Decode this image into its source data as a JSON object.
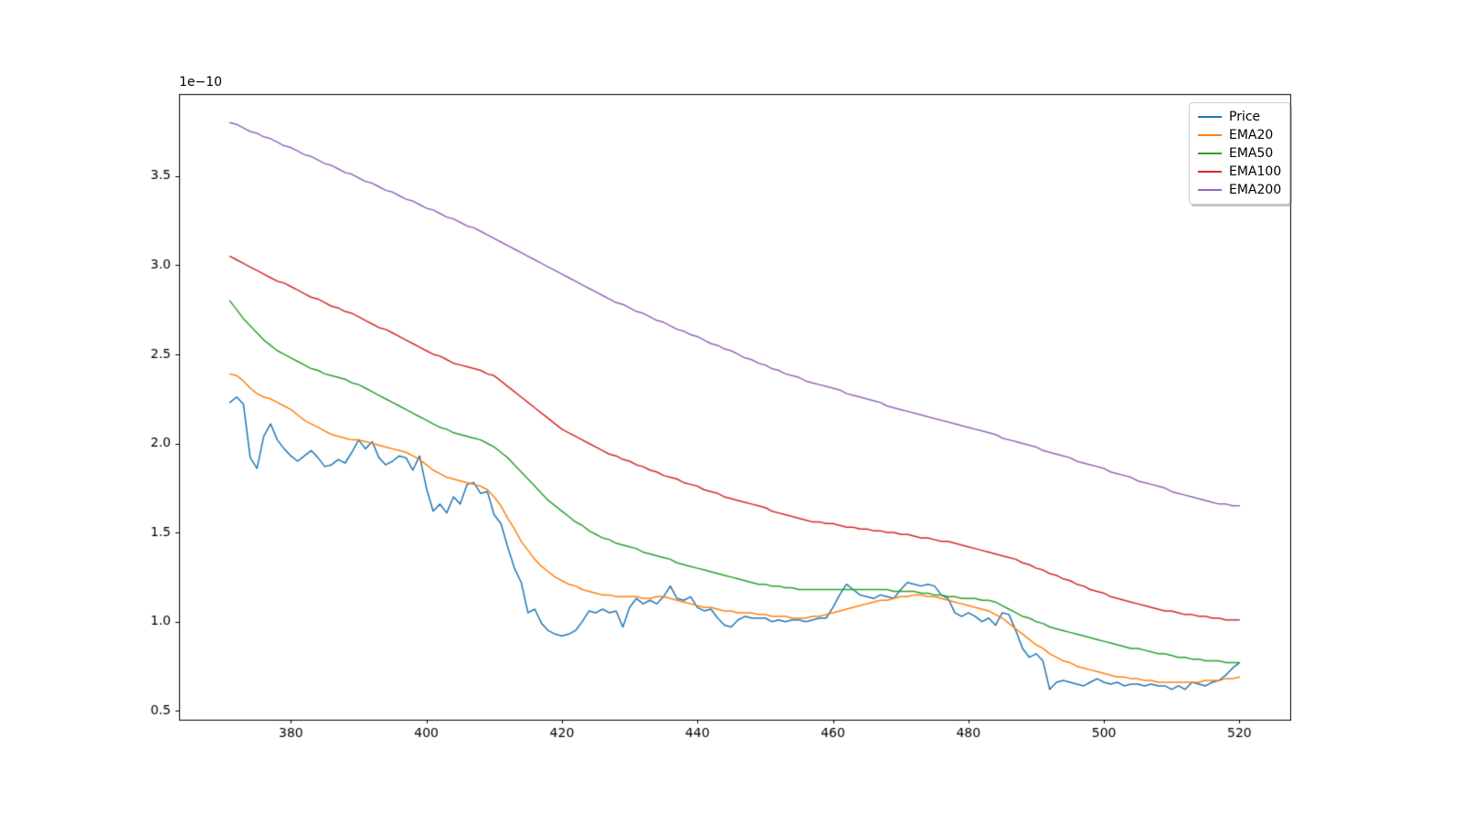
{
  "chart_data": {
    "type": "line",
    "title": "",
    "y_offset_label": "1e−10",
    "xlim": [
      363.5,
      527.5
    ],
    "ylim": [
      0.45,
      3.96
    ],
    "grid": false,
    "legend_position": "upper right",
    "x_ticks": [
      380,
      400,
      420,
      440,
      460,
      480,
      500,
      520
    ],
    "x_tick_labels": [
      "380",
      "400",
      "420",
      "440",
      "460",
      "480",
      "500",
      "520"
    ],
    "y_ticks": [
      0.5,
      1.0,
      1.5,
      2.0,
      2.5,
      3.0,
      3.5
    ],
    "y_tick_labels": [
      "0.5",
      "1.0",
      "1.5",
      "2.0",
      "2.5",
      "3.0",
      "3.5"
    ],
    "x": [
      371,
      372,
      373,
      374,
      375,
      376,
      377,
      378,
      379,
      380,
      381,
      382,
      383,
      384,
      385,
      386,
      387,
      388,
      389,
      390,
      391,
      392,
      393,
      394,
      395,
      396,
      397,
      398,
      399,
      400,
      401,
      402,
      403,
      404,
      405,
      406,
      407,
      408,
      409,
      410,
      411,
      412,
      413,
      414,
      415,
      416,
      417,
      418,
      419,
      420,
      421,
      422,
      423,
      424,
      425,
      426,
      427,
      428,
      429,
      430,
      431,
      432,
      433,
      434,
      435,
      436,
      437,
      438,
      439,
      440,
      441,
      442,
      443,
      444,
      445,
      446,
      447,
      448,
      449,
      450,
      451,
      452,
      453,
      454,
      455,
      456,
      457,
      458,
      459,
      460,
      461,
      462,
      463,
      464,
      465,
      466,
      467,
      468,
      469,
      470,
      471,
      472,
      473,
      474,
      475,
      476,
      477,
      478,
      479,
      480,
      481,
      482,
      483,
      484,
      485,
      486,
      487,
      488,
      489,
      490,
      491,
      492,
      493,
      494,
      495,
      496,
      497,
      498,
      499,
      500,
      501,
      502,
      503,
      504,
      505,
      506,
      507,
      508,
      509,
      510,
      511,
      512,
      513,
      514,
      515,
      516,
      517,
      518,
      519,
      520
    ],
    "series": [
      {
        "name": "Price",
        "color": "#1f77b4",
        "values": [
          2.23,
          2.26,
          2.22,
          1.92,
          1.86,
          2.04,
          2.11,
          2.02,
          1.97,
          1.93,
          1.9,
          1.93,
          1.96,
          1.92,
          1.87,
          1.88,
          1.91,
          1.89,
          1.95,
          2.02,
          1.97,
          2.01,
          1.92,
          1.88,
          1.9,
          1.93,
          1.92,
          1.85,
          1.93,
          1.75,
          1.62,
          1.66,
          1.61,
          1.7,
          1.66,
          1.77,
          1.78,
          1.72,
          1.73,
          1.6,
          1.55,
          1.42,
          1.3,
          1.22,
          1.05,
          1.07,
          0.99,
          0.95,
          0.93,
          0.92,
          0.93,
          0.95,
          1.0,
          1.06,
          1.05,
          1.07,
          1.05,
          1.06,
          0.97,
          1.08,
          1.13,
          1.1,
          1.12,
          1.1,
          1.14,
          1.2,
          1.13,
          1.12,
          1.14,
          1.08,
          1.06,
          1.07,
          1.02,
          0.98,
          0.97,
          1.01,
          1.03,
          1.02,
          1.02,
          1.02,
          1.0,
          1.01,
          1.0,
          1.01,
          1.01,
          1.0,
          1.01,
          1.02,
          1.02,
          1.08,
          1.15,
          1.21,
          1.18,
          1.15,
          1.14,
          1.13,
          1.15,
          1.14,
          1.13,
          1.18,
          1.22,
          1.21,
          1.2,
          1.21,
          1.2,
          1.15,
          1.13,
          1.05,
          1.03,
          1.05,
          1.03,
          1.0,
          1.02,
          0.98,
          1.05,
          1.04,
          0.95,
          0.85,
          0.8,
          0.82,
          0.78,
          0.62,
          0.66,
          0.67,
          0.66,
          0.65,
          0.64,
          0.66,
          0.68,
          0.66,
          0.65,
          0.66,
          0.64,
          0.65,
          0.65,
          0.64,
          0.65,
          0.64,
          0.64,
          0.62,
          0.64,
          0.62,
          0.66,
          0.65,
          0.64,
          0.66,
          0.67,
          0.7,
          0.74,
          0.77
        ]
      },
      {
        "name": "EMA20",
        "color": "#ff7f0e",
        "values": [
          2.39,
          2.38,
          2.35,
          2.31,
          2.28,
          2.26,
          2.25,
          2.23,
          2.21,
          2.19,
          2.16,
          2.13,
          2.11,
          2.09,
          2.07,
          2.05,
          2.04,
          2.03,
          2.02,
          2.02,
          2.01,
          2.0,
          1.99,
          1.98,
          1.97,
          1.96,
          1.95,
          1.93,
          1.91,
          1.88,
          1.85,
          1.83,
          1.81,
          1.8,
          1.79,
          1.78,
          1.77,
          1.76,
          1.74,
          1.7,
          1.65,
          1.58,
          1.52,
          1.45,
          1.4,
          1.35,
          1.31,
          1.28,
          1.25,
          1.23,
          1.21,
          1.2,
          1.18,
          1.17,
          1.16,
          1.15,
          1.15,
          1.14,
          1.14,
          1.14,
          1.14,
          1.13,
          1.13,
          1.14,
          1.14,
          1.13,
          1.12,
          1.11,
          1.1,
          1.09,
          1.08,
          1.08,
          1.07,
          1.06,
          1.06,
          1.05,
          1.05,
          1.05,
          1.04,
          1.04,
          1.03,
          1.03,
          1.03,
          1.02,
          1.02,
          1.02,
          1.03,
          1.03,
          1.04,
          1.05,
          1.06,
          1.07,
          1.08,
          1.09,
          1.1,
          1.11,
          1.12,
          1.12,
          1.13,
          1.14,
          1.14,
          1.15,
          1.15,
          1.14,
          1.14,
          1.13,
          1.12,
          1.11,
          1.1,
          1.09,
          1.08,
          1.07,
          1.06,
          1.04,
          1.02,
          0.99,
          0.96,
          0.93,
          0.9,
          0.87,
          0.85,
          0.82,
          0.8,
          0.78,
          0.77,
          0.75,
          0.74,
          0.73,
          0.72,
          0.71,
          0.7,
          0.69,
          0.69,
          0.68,
          0.68,
          0.67,
          0.67,
          0.66,
          0.66,
          0.66,
          0.66,
          0.66,
          0.66,
          0.66,
          0.67,
          0.67,
          0.67,
          0.68,
          0.68,
          0.69
        ]
      },
      {
        "name": "EMA50",
        "color": "#2ca02c",
        "values": [
          2.8,
          2.75,
          2.7,
          2.66,
          2.62,
          2.58,
          2.55,
          2.52,
          2.5,
          2.48,
          2.46,
          2.44,
          2.42,
          2.41,
          2.39,
          2.38,
          2.37,
          2.36,
          2.34,
          2.33,
          2.31,
          2.29,
          2.27,
          2.25,
          2.23,
          2.21,
          2.19,
          2.17,
          2.15,
          2.13,
          2.11,
          2.09,
          2.08,
          2.06,
          2.05,
          2.04,
          2.03,
          2.02,
          2.0,
          1.98,
          1.95,
          1.92,
          1.88,
          1.84,
          1.8,
          1.76,
          1.72,
          1.68,
          1.65,
          1.62,
          1.59,
          1.56,
          1.54,
          1.51,
          1.49,
          1.47,
          1.46,
          1.44,
          1.43,
          1.42,
          1.41,
          1.39,
          1.38,
          1.37,
          1.36,
          1.35,
          1.33,
          1.32,
          1.31,
          1.3,
          1.29,
          1.28,
          1.27,
          1.26,
          1.25,
          1.24,
          1.23,
          1.22,
          1.21,
          1.21,
          1.2,
          1.2,
          1.19,
          1.19,
          1.18,
          1.18,
          1.18,
          1.18,
          1.18,
          1.18,
          1.18,
          1.18,
          1.18,
          1.18,
          1.18,
          1.18,
          1.18,
          1.18,
          1.17,
          1.17,
          1.17,
          1.17,
          1.16,
          1.16,
          1.15,
          1.15,
          1.14,
          1.14,
          1.13,
          1.13,
          1.13,
          1.12,
          1.12,
          1.11,
          1.09,
          1.07,
          1.05,
          1.03,
          1.02,
          1.0,
          0.99,
          0.97,
          0.96,
          0.95,
          0.94,
          0.93,
          0.92,
          0.91,
          0.9,
          0.89,
          0.88,
          0.87,
          0.86,
          0.85,
          0.85,
          0.84,
          0.83,
          0.82,
          0.82,
          0.81,
          0.8,
          0.8,
          0.79,
          0.79,
          0.78,
          0.78,
          0.78,
          0.77,
          0.77,
          0.77
        ]
      },
      {
        "name": "EMA100",
        "color": "#d62728",
        "values": [
          3.05,
          3.03,
          3.01,
          2.99,
          2.97,
          2.95,
          2.93,
          2.91,
          2.9,
          2.88,
          2.86,
          2.84,
          2.82,
          2.81,
          2.79,
          2.77,
          2.76,
          2.74,
          2.73,
          2.71,
          2.69,
          2.67,
          2.65,
          2.64,
          2.62,
          2.6,
          2.58,
          2.56,
          2.54,
          2.52,
          2.5,
          2.49,
          2.47,
          2.45,
          2.44,
          2.43,
          2.42,
          2.41,
          2.39,
          2.38,
          2.35,
          2.32,
          2.29,
          2.26,
          2.23,
          2.2,
          2.17,
          2.14,
          2.11,
          2.08,
          2.06,
          2.04,
          2.02,
          2.0,
          1.98,
          1.96,
          1.94,
          1.93,
          1.91,
          1.9,
          1.88,
          1.87,
          1.85,
          1.84,
          1.82,
          1.81,
          1.8,
          1.78,
          1.77,
          1.76,
          1.74,
          1.73,
          1.72,
          1.7,
          1.69,
          1.68,
          1.67,
          1.66,
          1.65,
          1.64,
          1.62,
          1.61,
          1.6,
          1.59,
          1.58,
          1.57,
          1.56,
          1.56,
          1.55,
          1.55,
          1.54,
          1.53,
          1.53,
          1.52,
          1.52,
          1.51,
          1.51,
          1.5,
          1.5,
          1.49,
          1.49,
          1.48,
          1.47,
          1.47,
          1.46,
          1.45,
          1.45,
          1.44,
          1.43,
          1.42,
          1.41,
          1.4,
          1.39,
          1.38,
          1.37,
          1.36,
          1.35,
          1.33,
          1.32,
          1.3,
          1.29,
          1.27,
          1.26,
          1.24,
          1.23,
          1.21,
          1.2,
          1.18,
          1.17,
          1.16,
          1.14,
          1.13,
          1.12,
          1.11,
          1.1,
          1.09,
          1.08,
          1.07,
          1.06,
          1.06,
          1.05,
          1.04,
          1.04,
          1.03,
          1.03,
          1.02,
          1.02,
          1.01,
          1.01,
          1.01
        ]
      },
      {
        "name": "EMA200",
        "color": "#9467bd",
        "values": [
          3.8,
          3.79,
          3.77,
          3.75,
          3.74,
          3.72,
          3.71,
          3.69,
          3.67,
          3.66,
          3.64,
          3.62,
          3.61,
          3.59,
          3.57,
          3.56,
          3.54,
          3.52,
          3.51,
          3.49,
          3.47,
          3.46,
          3.44,
          3.42,
          3.41,
          3.39,
          3.37,
          3.36,
          3.34,
          3.32,
          3.31,
          3.29,
          3.27,
          3.26,
          3.24,
          3.22,
          3.21,
          3.19,
          3.17,
          3.15,
          3.13,
          3.11,
          3.09,
          3.07,
          3.05,
          3.03,
          3.01,
          2.99,
          2.97,
          2.95,
          2.93,
          2.91,
          2.89,
          2.87,
          2.85,
          2.83,
          2.81,
          2.79,
          2.78,
          2.76,
          2.74,
          2.73,
          2.71,
          2.69,
          2.68,
          2.66,
          2.64,
          2.63,
          2.61,
          2.6,
          2.58,
          2.56,
          2.55,
          2.53,
          2.52,
          2.5,
          2.48,
          2.47,
          2.45,
          2.44,
          2.42,
          2.41,
          2.39,
          2.38,
          2.37,
          2.35,
          2.34,
          2.33,
          2.32,
          2.31,
          2.3,
          2.28,
          2.27,
          2.26,
          2.25,
          2.24,
          2.23,
          2.21,
          2.2,
          2.19,
          2.18,
          2.17,
          2.16,
          2.15,
          2.14,
          2.13,
          2.12,
          2.11,
          2.1,
          2.09,
          2.08,
          2.07,
          2.06,
          2.05,
          2.03,
          2.02,
          2.01,
          2.0,
          1.99,
          1.98,
          1.96,
          1.95,
          1.94,
          1.93,
          1.92,
          1.9,
          1.89,
          1.88,
          1.87,
          1.86,
          1.84,
          1.83,
          1.82,
          1.81,
          1.79,
          1.78,
          1.77,
          1.76,
          1.75,
          1.73,
          1.72,
          1.71,
          1.7,
          1.69,
          1.68,
          1.67,
          1.66,
          1.66,
          1.65,
          1.65
        ]
      }
    ],
    "colors": {
      "background": "#ffffff",
      "axis": "#000000",
      "legend_border": "#cccccc"
    }
  }
}
